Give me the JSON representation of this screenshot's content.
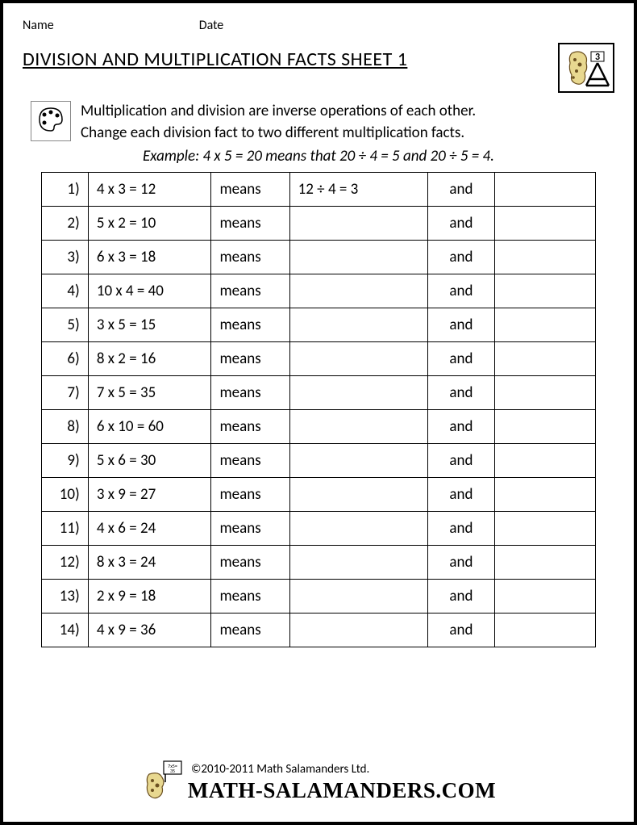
{
  "header": {
    "name_label": "Name",
    "date_label": "Date"
  },
  "title": "DIVISION AND MULTIPLICATION FACTS SHEET 1",
  "grade_badge": "3",
  "intro": {
    "line1": "Multiplication and division are inverse operations of each other.",
    "line2": "Change each division fact to two different multiplication facts."
  },
  "example": "Example: 4 x 5 = 20 means that 20 ÷ 4 = 5 and 20 ÷ 5 = 4.",
  "table": {
    "means_label": "means",
    "and_label": "and",
    "rows": [
      {
        "num": "1)",
        "fact": "4 x 3 = 12",
        "answer1": "12 ÷ 4 = 3"
      },
      {
        "num": "2)",
        "fact": "5 x 2 = 10",
        "answer1": ""
      },
      {
        "num": "3)",
        "fact": "6 x 3 = 18",
        "answer1": ""
      },
      {
        "num": "4)",
        "fact": "10 x 4 = 40",
        "answer1": ""
      },
      {
        "num": "5)",
        "fact": "3 x 5 = 15",
        "answer1": ""
      },
      {
        "num": "6)",
        "fact": "8 x 2 = 16",
        "answer1": ""
      },
      {
        "num": "7)",
        "fact": "7 x 5 = 35",
        "answer1": ""
      },
      {
        "num": "8)",
        "fact": "6 x 10 = 60",
        "answer1": ""
      },
      {
        "num": "9)",
        "fact": "5 x 6 = 30",
        "answer1": ""
      },
      {
        "num": "10)",
        "fact": "3 x 9 = 27",
        "answer1": ""
      },
      {
        "num": "11)",
        "fact": "4 x 6 = 24",
        "answer1": ""
      },
      {
        "num": "12)",
        "fact": "8 x 3 = 24",
        "answer1": ""
      },
      {
        "num": "13)",
        "fact": "2 x 9 = 18",
        "answer1": ""
      },
      {
        "num": "14)",
        "fact": "4 x 9 = 36",
        "answer1": ""
      }
    ]
  },
  "footer": {
    "copyright": "©2010-2011 Math Salamanders Ltd.",
    "brand": "MATH-SALAMANDERS.COM"
  },
  "colors": {
    "border": "#000000",
    "text": "#000000",
    "background": "#ffffff",
    "salamander_body": "#e8d890",
    "salamander_spots": "#6b5020"
  }
}
